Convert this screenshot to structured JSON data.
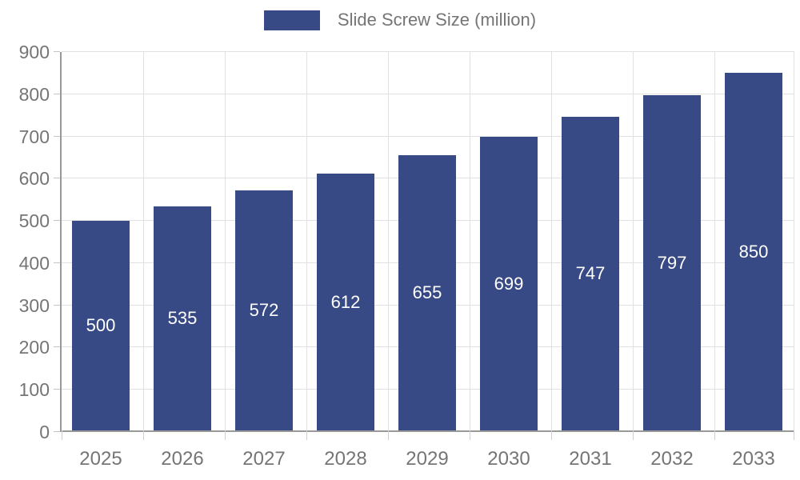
{
  "legend": {
    "label": "Slide Screw Size (million)"
  },
  "colors": {
    "bar": "#384A85",
    "value_label": "#FFFFFF",
    "axis_label": "#757575",
    "legend_text": "#757575",
    "grid_line": "#E0E0E5",
    "axis_line": "#999999",
    "background": "#FFFFFF"
  },
  "chart_data": {
    "type": "bar",
    "series_name": "Slide Screw Size (million)",
    "categories": [
      "2025",
      "2026",
      "2027",
      "2028",
      "2029",
      "2030",
      "2031",
      "2032",
      "2033"
    ],
    "values": [
      500,
      535,
      572,
      612,
      655,
      699,
      747,
      797,
      850
    ],
    "ylim": [
      0,
      900
    ],
    "yticks": [
      0,
      100,
      200,
      300,
      400,
      500,
      600,
      700,
      800,
      900
    ],
    "grid": true,
    "legend_position": "top-center",
    "value_label_position": "inside-center"
  }
}
